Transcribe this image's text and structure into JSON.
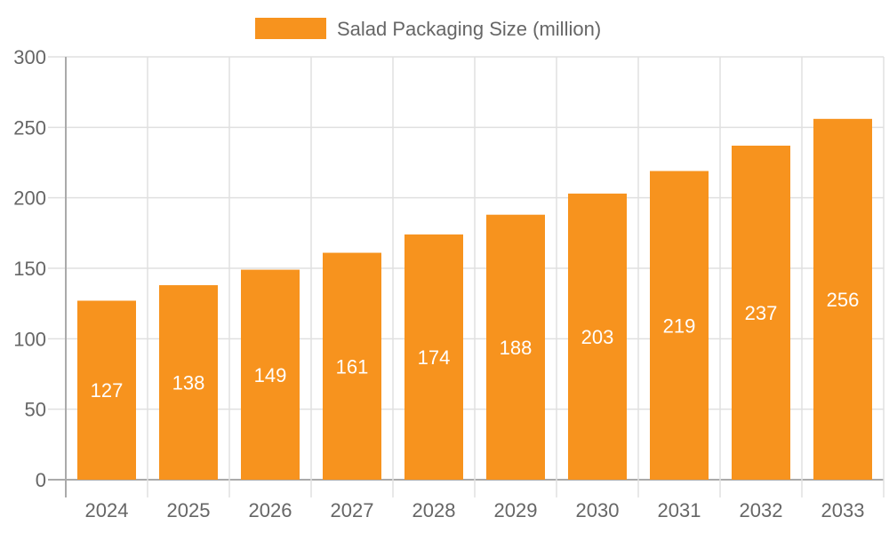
{
  "chart_data": {
    "type": "bar",
    "categories": [
      "2024",
      "2025",
      "2026",
      "2027",
      "2028",
      "2029",
      "2030",
      "2031",
      "2032",
      "2033"
    ],
    "series": [
      {
        "name": "Salad Packaging Size (million)",
        "values": [
          127,
          138,
          149,
          161,
          174,
          188,
          203,
          219,
          237,
          256
        ],
        "color": "#f7931e"
      }
    ],
    "ylim": [
      0,
      300
    ],
    "yticks": [
      0,
      50,
      100,
      150,
      200,
      250,
      300
    ],
    "grid": true,
    "legend": "top",
    "data_labels": true,
    "xlabel": "",
    "ylabel": ""
  }
}
